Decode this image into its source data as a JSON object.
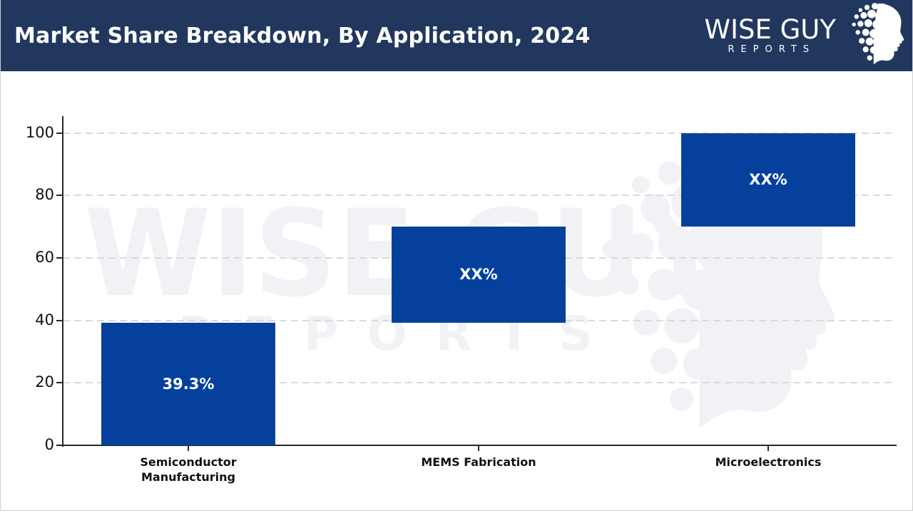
{
  "header": {
    "title": "Market Share Breakdown, By Application, 2024",
    "logo": {
      "wordmark": "WISE GUY",
      "subtext": "REPORTS"
    }
  },
  "watermark": {
    "wordmark": "WISE GUY",
    "subtext": "REPORTS"
  },
  "chart_data": {
    "type": "bar",
    "subtype": "floating-segment-bars (cumulative market share breakdown)",
    "title": "Market Share Breakdown, By Application, 2024",
    "categories": [
      "Semiconductor Manufacturing",
      "MEMS Fabrication",
      "Microelectronics"
    ],
    "category_label_lines": [
      [
        "Semiconductor",
        "Manufacturing"
      ],
      [
        "MEMS Fabrication"
      ],
      [
        "Microelectronics"
      ]
    ],
    "segments": [
      {
        "category": "Semiconductor Manufacturing",
        "from": 0,
        "to": 39.3,
        "label": "39.3%"
      },
      {
        "category": "MEMS Fabrication",
        "from": 39.3,
        "to": 70,
        "label": "XX%"
      },
      {
        "category": "Microelectronics",
        "from": 70,
        "to": 100,
        "label": "XX%"
      }
    ],
    "xlabel": "",
    "ylabel": "",
    "ylim": [
      0,
      105
    ],
    "yticks": [
      0,
      20,
      40,
      60,
      80,
      100
    ],
    "grid": "horizontal dashed",
    "legend": "none",
    "colors": {
      "bar": "#05419c",
      "bar_label": "#ffffff",
      "grid": "#dadada",
      "axis": "#262626",
      "header_bg": "#22375e",
      "watermark": "#f1f2f5"
    }
  }
}
